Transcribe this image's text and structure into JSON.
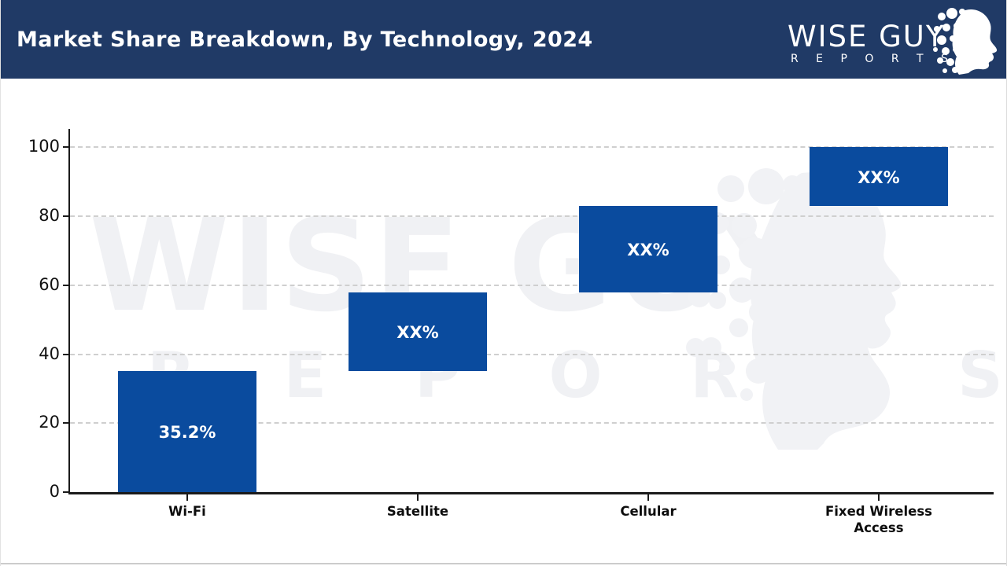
{
  "header": {
    "title": "Market Share Breakdown, By Technology, 2024",
    "logo": {
      "brand_line1": "WISE GUY",
      "brand_line2": "R E P O R T S"
    }
  },
  "watermark": {
    "line1": "WISE GUY",
    "line2": "R E P O R T S"
  },
  "chart_data": {
    "type": "bar",
    "variant": "floating-segment-waterfall",
    "title": "Market Share Breakdown, By Technology, 2024",
    "categories": [
      "Wi-Fi",
      "Satellite",
      "Cellular",
      "Fixed Wireless Access"
    ],
    "segments": [
      {
        "category": "Wi-Fi",
        "start": 0,
        "end": 35.2,
        "label": "35.2%"
      },
      {
        "category": "Satellite",
        "start": 35.2,
        "end": 58,
        "label": "XX%"
      },
      {
        "category": "Cellular",
        "start": 58,
        "end": 83,
        "label": "XX%"
      },
      {
        "category": "Fixed Wireless Access",
        "start": 83,
        "end": 100,
        "label": "XX%"
      }
    ],
    "xlabel": "",
    "ylabel": "",
    "ylim": [
      0,
      100
    ],
    "yticks": [
      0,
      20,
      40,
      60,
      80,
      100
    ],
    "grid": "horizontal-dashed",
    "legend": "none",
    "bar_color": "#0a4b9e",
    "bar_label_color": "#ffffff"
  },
  "colors": {
    "header_bg": "#203a66",
    "bar": "#0a4b9e",
    "watermark": "#f0f1f4",
    "grid": "#cfcfcf",
    "axis": "#1a1a1a"
  }
}
